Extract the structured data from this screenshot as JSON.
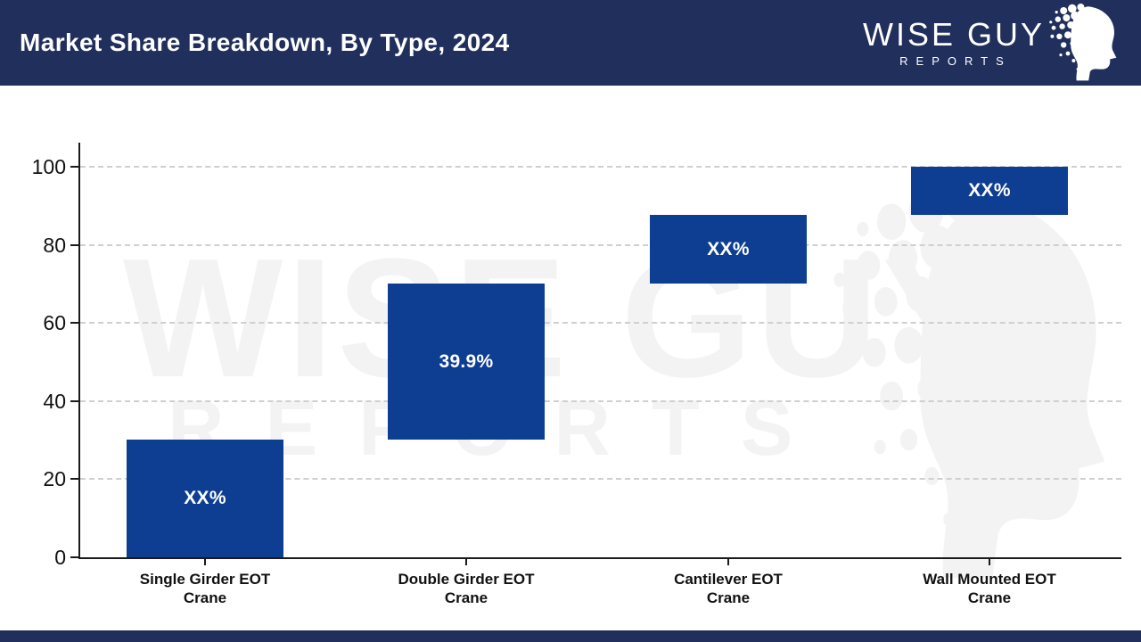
{
  "page": {
    "background": "#ffffff",
    "accent_navy": "#202f5c"
  },
  "header": {
    "title": "Market Share Breakdown, By Type, 2024",
    "logo": {
      "brand": "WISE GUY",
      "sub": "REPORTS"
    }
  },
  "watermark": {
    "brand": "WISE GUY",
    "sub": "REPORTS"
  },
  "chart_data": {
    "type": "bar",
    "variant": "floating stacked breakdown segments",
    "title": "Market Share Breakdown, By Type, 2024",
    "xlabel": "",
    "ylabel": "",
    "ylim": [
      0,
      105
    ],
    "y_ticks": [
      0,
      20,
      40,
      60,
      80,
      100
    ],
    "grid": "horizontal dashed",
    "legend": "none",
    "bar_color": "#0d3e92",
    "bar_label_color": "#ffffff",
    "categories": [
      "Single Girder EOT Crane",
      "Double Girder EOT Crane",
      "Cantilever EOT Crane",
      "Wall Mounted EOT Crane"
    ],
    "segments": [
      {
        "category": "Single Girder EOT Crane",
        "value_label": "XX%",
        "start": 0,
        "end": 30.1
      },
      {
        "category": "Double Girder EOT Crane",
        "value_label": "39.9%",
        "start": 30.1,
        "end": 70
      },
      {
        "category": "Cantilever EOT Crane",
        "value_label": "XX%",
        "start": 70,
        "end": 87.6
      },
      {
        "category": "Wall Mounted EOT Crane",
        "value_label": "XX%",
        "start": 87.6,
        "end": 99.9
      }
    ]
  }
}
